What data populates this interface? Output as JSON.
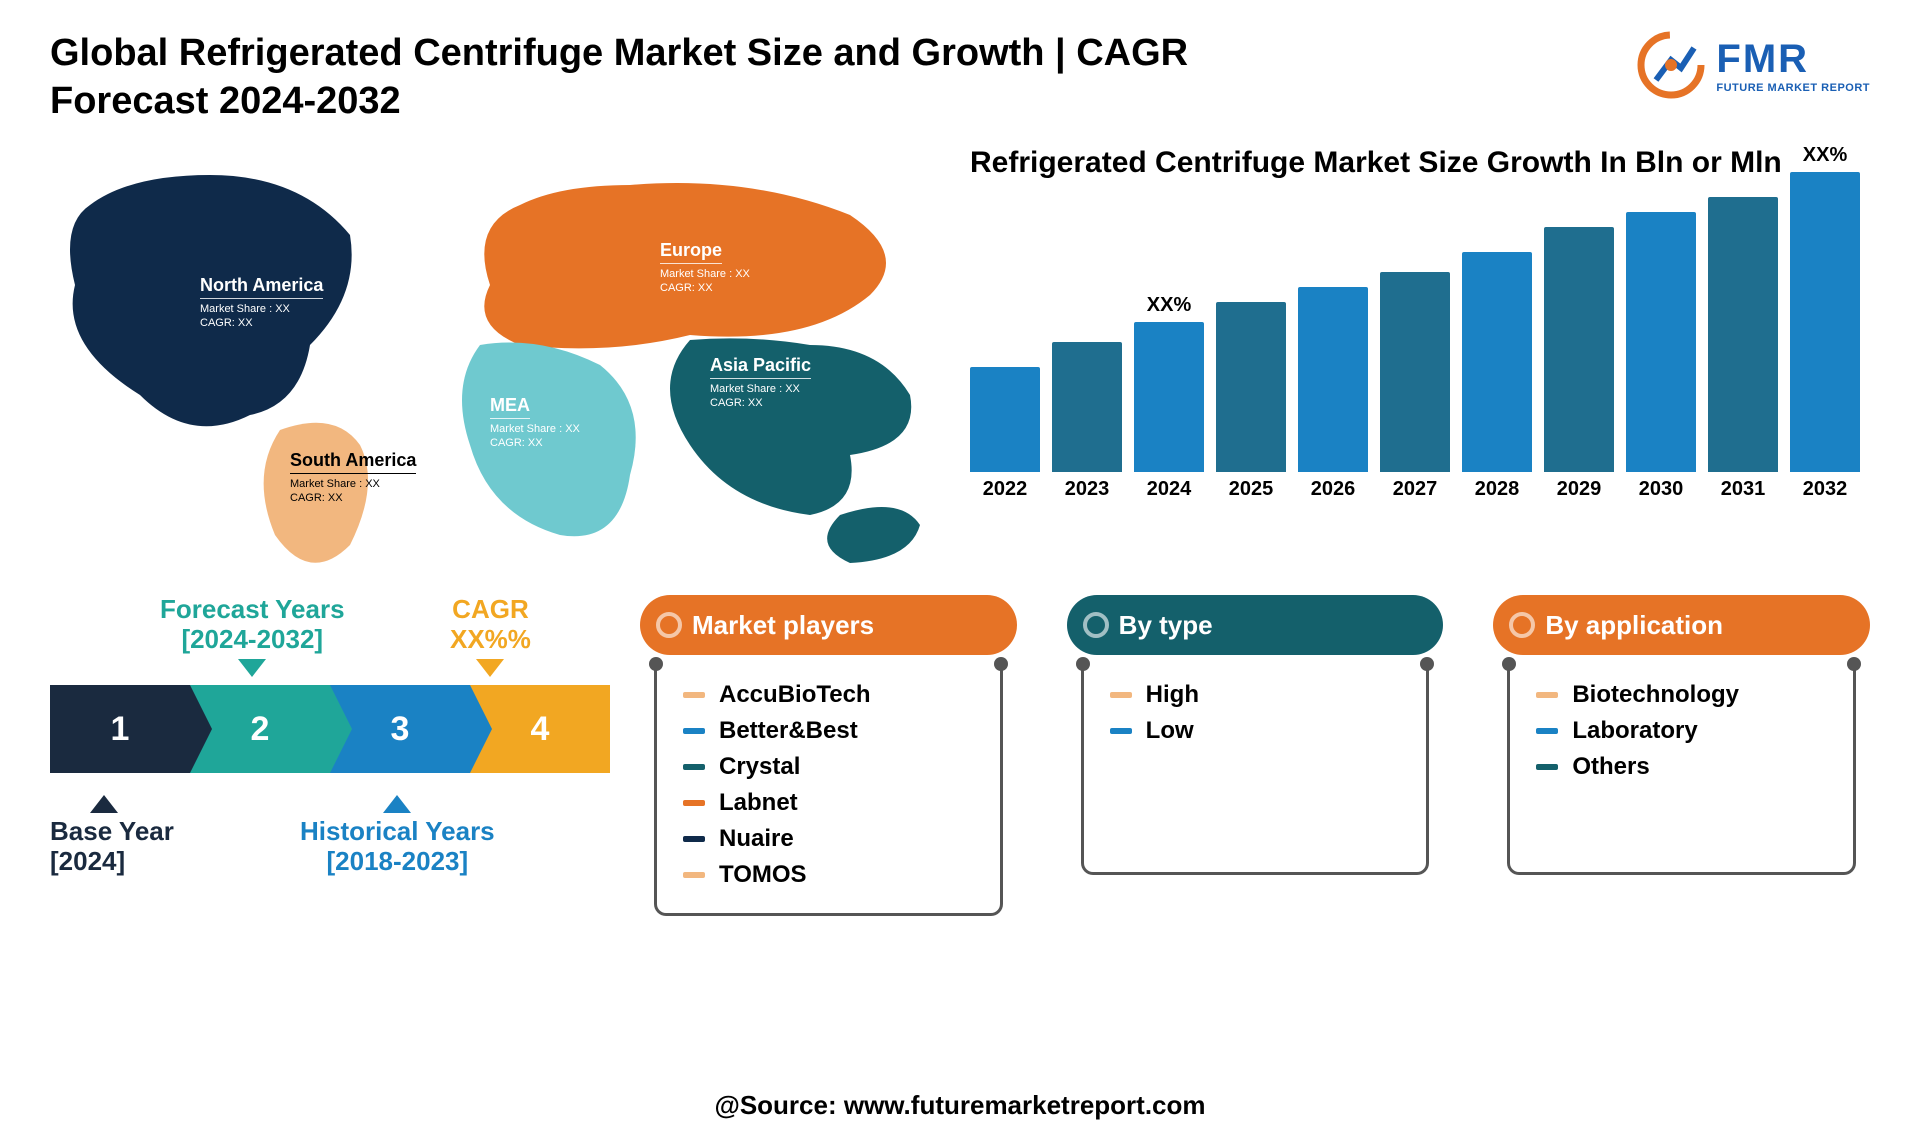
{
  "title": "Global Refrigerated Centrifuge Market Size and Growth | CAGR Forecast 2024-2032",
  "logo": {
    "name": "FMR",
    "sub": "FUTURE MARKET REPORT",
    "icon_color": "#e67326",
    "text_color": "#1a5fb4"
  },
  "map": {
    "regions": [
      {
        "name": "North America",
        "share": "Market Share : XX",
        "cagr": "CAGR: XX",
        "color": "#0f2a4a"
      },
      {
        "name": "South America",
        "share": "Market Share : XX",
        "cagr": "CAGR: XX",
        "color": "#f2b77f"
      },
      {
        "name": "Europe",
        "share": "Market Share : XX",
        "cagr": "CAGR: XX",
        "color": "#e67326"
      },
      {
        "name": "MEA",
        "share": "Market Share : XX",
        "cagr": "CAGR: XX",
        "color": "#6fc9cf"
      },
      {
        "name": "Asia Pacific",
        "share": "Market Share : XX",
        "cagr": "CAGR: XX",
        "color": "#14606b"
      }
    ]
  },
  "bar_chart": {
    "title": "Refrigerated Centrifuge Market Size Growth In Bln or Mln",
    "years": [
      "2022",
      "2023",
      "2024",
      "2025",
      "2026",
      "2027",
      "2028",
      "2029",
      "2030",
      "2031",
      "2032"
    ],
    "heights": [
      105,
      130,
      150,
      170,
      185,
      200,
      220,
      245,
      260,
      275,
      300
    ],
    "colors": [
      "#1a82c4",
      "#1f6e8f",
      "#1a82c4",
      "#1f6e8f",
      "#1a82c4",
      "#1f6e8f",
      "#1a82c4",
      "#1f6e8f",
      "#1a82c4",
      "#1f6e8f",
      "#1a82c4"
    ],
    "callouts": {
      "2": "XX%",
      "10": "XX%"
    },
    "label_fontsize": 20,
    "label_fontweight": 800
  },
  "timeline": {
    "segments": [
      {
        "n": "1",
        "bg": "#1a2a3f"
      },
      {
        "n": "2",
        "bg": "#1fa699"
      },
      {
        "n": "3",
        "bg": "#1a82c4"
      },
      {
        "n": "4",
        "bg": "#f2a722"
      }
    ],
    "annotations": {
      "base": {
        "text1": "Base Year",
        "text2": "[2024]",
        "color": "#1a2a3f"
      },
      "forecast": {
        "text1": "Forecast Years",
        "text2": "[2024-2032]",
        "color": "#1fa699"
      },
      "historical": {
        "text1": "Historical Years",
        "text2": "[2018-2023]",
        "color": "#1a82c4"
      },
      "cagr": {
        "text1": "CAGR",
        "text2": "XX%%",
        "color": "#f2a722"
      }
    }
  },
  "pills": {
    "players": {
      "label": "Market players",
      "bg": "#e67326",
      "items": [
        "AccuBioTech",
        "Better&Best",
        "Crystal",
        "Labnet",
        "Nuaire",
        "TOMOS"
      ],
      "item_colors": [
        "#f2b77f",
        "#1a82c4",
        "#14606b",
        "#e67326",
        "#0f2a4a",
        "#f2b77f"
      ]
    },
    "type": {
      "label": "By type",
      "bg": "#14606b",
      "items": [
        "High",
        "Low"
      ],
      "item_colors": [
        "#f2b77f",
        "#1a82c4"
      ]
    },
    "app": {
      "label": "By application",
      "bg": "#e67326",
      "items": [
        "Biotechnology",
        "Laboratory",
        "Others"
      ],
      "item_colors": [
        "#f2b77f",
        "#1a82c4",
        "#14606b"
      ]
    }
  },
  "source": "@Source: www.futuremarketreport.com"
}
